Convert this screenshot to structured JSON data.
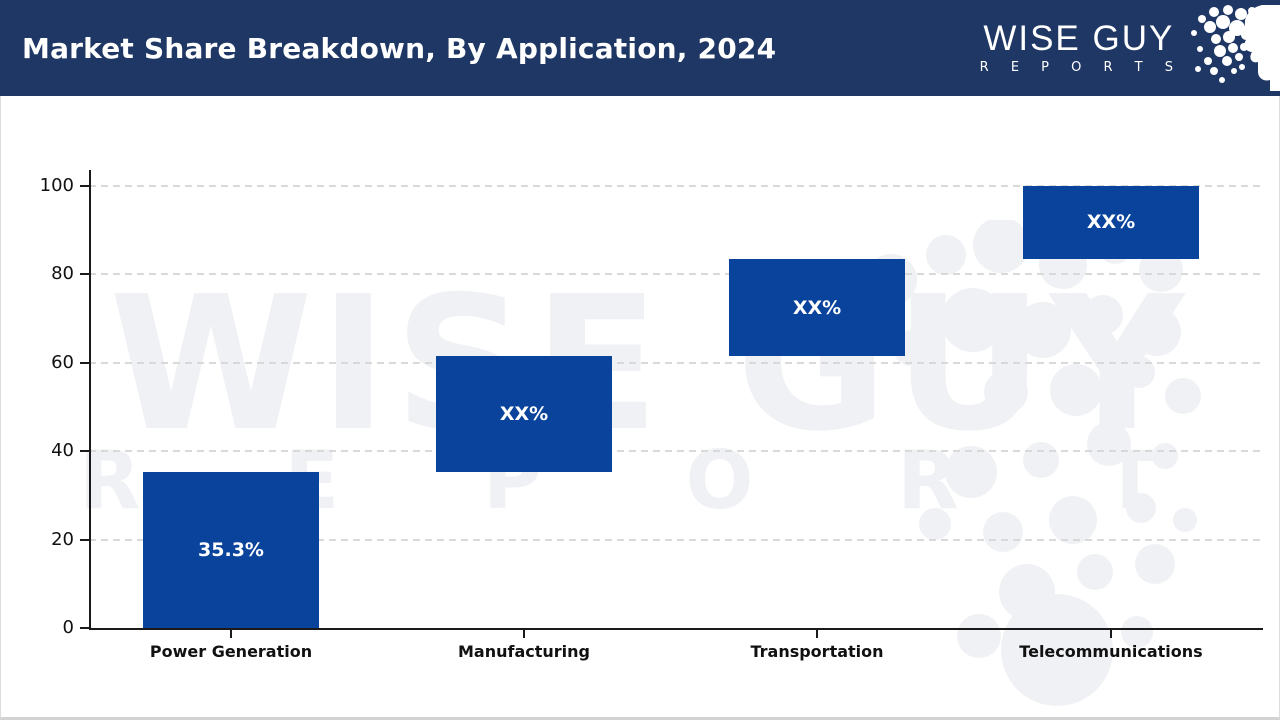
{
  "header": {
    "title": "Market Share Breakdown, By Application, 2024",
    "logo_line1": "WISE GUY",
    "logo_line2": "R E P O R T S"
  },
  "watermark": {
    "line1": "WISE GUY",
    "line2": "R E P O R T S"
  },
  "colors": {
    "header_bg": "#1f3764",
    "bar_blue": "#09439c",
    "gridline": "#d9d9d9",
    "axis": "#1a1a1a",
    "watermark": "#f0f1f4"
  },
  "chart_data": {
    "type": "bar",
    "subtype": "floating-waterfall",
    "title": "Market Share Breakdown, By Application, 2024",
    "categories": [
      "Power Generation",
      "Manufacturing",
      "Transportation",
      "Telecommunications"
    ],
    "bars": [
      {
        "category": "Power Generation",
        "start": 0,
        "end": 35.3,
        "label": "35.3%"
      },
      {
        "category": "Manufacturing",
        "start": 35.3,
        "end": 61.5,
        "label": "XX%"
      },
      {
        "category": "Transportation",
        "start": 61.5,
        "end": 83.5,
        "label": "XX%"
      },
      {
        "category": "Telecommunications",
        "start": 83.5,
        "end": 100,
        "label": "XX%"
      }
    ],
    "yticks": [
      0,
      20,
      40,
      60,
      80,
      100
    ],
    "ylim": [
      0,
      105
    ],
    "xlabel": "",
    "ylabel": "",
    "legend": "none",
    "grid": "horizontal-dashed"
  }
}
